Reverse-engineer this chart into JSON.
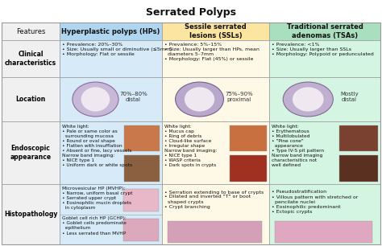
{
  "title": "Serrated Polyps",
  "col_headers": [
    "Features",
    "Hyperplastic polyps (HPs)",
    "Sessile serrated\nlesions (SSLs)",
    "Traditional serrated\nadenomas (TSAs)"
  ],
  "col_header_colors": [
    "#f0f0f0",
    "#aed6f1",
    "#fce5a0",
    "#a9dfbf"
  ],
  "row_labels": [
    "Clinical\ncharacteristics",
    "Location",
    "Endoscopic\nappearance",
    "Histopathology"
  ],
  "row_label_bg": "#f0f0f0",
  "cell_bg": [
    "#d6eaf8",
    "#fef9e7",
    "#d5f5e3"
  ],
  "border_color": "#999999",
  "title_fontsize": 9,
  "header_fontsize": 6.0,
  "cell_fontsize": 4.5,
  "row_label_fontsize": 5.5,
  "hp_clinical": "• Prevalence: 20%–30%\n• Size: Usually small or diminutive (≤5mm)\n• Morphology: Flat or sessile",
  "ssl_clinical": "• Prevalence: 5%–15%\n• Size: Usually larger than HPs, mean\n  diameters 5–7mm\n• Morphology: Flat (45%) or sessile",
  "tsa_clinical": "• Prevalence: <1%\n• Size: Usually larger than SSLs\n• Morphology: Polypoid or pedunculated",
  "hp_location": "70%–80%\ndistal",
  "ssl_location": "75%–90%\nproximal",
  "tsa_location": "Mostly\ndistal",
  "hp_endoscopic": "White light:\n• Pale or same color as\n  surrounding mucosa\n• Round or oval shape\n• Flatten with insufflation\n• Absent or fine, lacy vessels\nNarrow band imaging:\n• NICE type 1\n• Uniform dark or white spots",
  "ssl_endoscopic": "White light:\n• Mucus cap\n• Ring of debris\n• Cloud-like surface\n• Irregular shape\nNarrow band imaging:\n• NICE type 1\n• WASP criteria\n• Dark spots in crypts",
  "tsa_endoscopic": "White light:\n• Erythematous\n• Multilobulated\n• \"Pine cone\"\n  appearance\n• Type IV-S pit pattern\nNarrow band imaging\ncharacterisitics not\nwell defined",
  "hp_histo_top": "Microvesicular HP (MVHP):\n• Narrow, uniform basal crypt\n• Serrated upper crypt\n• Eosinophilic mucin droplets\n  in cytoplasm",
  "hp_histo_bot": "Goblet cell rich HP (GCHP):\n• Goblet cells predominate\n  epithelium\n• Less serrated than MVHP",
  "ssl_histo": "• Serration extending to base of crypts\n• Dilated and inverted \"T\" or boot\n  shaped crypts\n• Crypt branching",
  "tsa_histo": "• Pseudostratification\n• Villous pattern with stretched or\n  pencilate nuclei\n• Eosinophilic predominant\n• Ectopic crypts",
  "img_endo_hp": [
    "#c8784a",
    "#8b6040"
  ],
  "img_endo_ssl": [
    "#c87040",
    "#a03020"
  ],
  "img_endo_tsa": [
    "#7a4030",
    "#5a3020"
  ],
  "img_histo_hp_top": "#e8b8c8",
  "img_histo_hp_bot": "#dca8bc",
  "img_histo_ssl": "#d4a0b8",
  "img_histo_tsa": "#e0a8c0"
}
